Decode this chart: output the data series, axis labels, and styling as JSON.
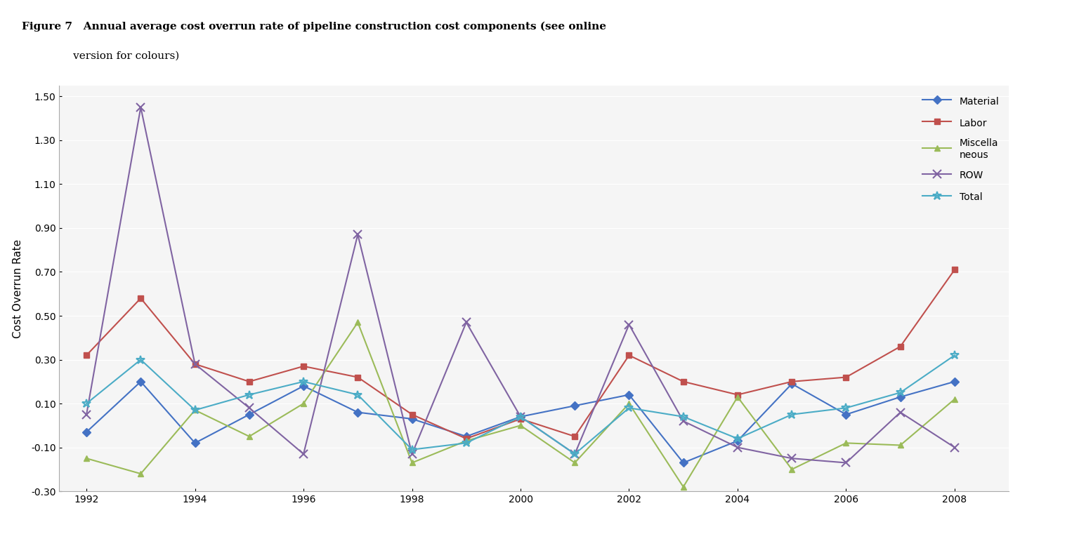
{
  "years": [
    1992,
    1993,
    1994,
    1995,
    1996,
    1997,
    1998,
    1999,
    2000,
    2001,
    2002,
    2003,
    2004,
    2005,
    2006,
    2007,
    2008
  ],
  "Material": [
    -0.03,
    0.2,
    -0.08,
    0.05,
    0.18,
    0.06,
    0.03,
    -0.05,
    0.04,
    0.09,
    0.14,
    -0.17,
    -0.07,
    0.19,
    0.05,
    0.13,
    0.2
  ],
  "Labor": [
    0.32,
    0.58,
    0.28,
    0.2,
    0.27,
    0.22,
    0.05,
    -0.06,
    0.03,
    -0.05,
    0.32,
    0.2,
    0.14,
    0.2,
    0.22,
    0.36,
    0.71
  ],
  "Miscellaneous": [
    -0.15,
    -0.22,
    0.07,
    -0.05,
    0.1,
    0.47,
    -0.17,
    -0.07,
    0.0,
    -0.17,
    0.1,
    -0.28,
    0.13,
    -0.2,
    -0.08,
    -0.09,
    0.12
  ],
  "ROW": [
    0.05,
    1.45,
    0.28,
    0.08,
    -0.13,
    0.87,
    -0.13,
    0.47,
    0.04,
    -0.13,
    0.46,
    0.02,
    -0.1,
    -0.15,
    -0.17,
    0.06,
    -0.1
  ],
  "Total": [
    0.1,
    0.3,
    0.07,
    0.14,
    0.2,
    0.14,
    -0.11,
    -0.08,
    0.04,
    -0.13,
    0.08,
    0.04,
    -0.06,
    0.05,
    0.08,
    0.15,
    0.32
  ],
  "ylabel": "Cost Overrun Rate",
  "ylim": [
    -0.3,
    1.55
  ],
  "yticks": [
    -0.3,
    -0.1,
    0.1,
    0.3,
    0.5,
    0.7,
    0.9,
    1.1,
    1.3,
    1.5
  ],
  "colors": {
    "Material": "#4472C4",
    "Labor": "#C0504D",
    "Miscellaneous": "#9BBB59",
    "ROW": "#8064A2",
    "Total": "#4BACC6"
  },
  "markers": {
    "Material": "D",
    "Labor": "s",
    "Miscellaneous": "^",
    "ROW": "x",
    "Total": "*"
  },
  "caption_line1": "Figure 7   Annual average cost overrun rate of pipeline construction cost components (see online",
  "caption_line2": "               version for colours)",
  "figure_bg": "#f0f0f0"
}
